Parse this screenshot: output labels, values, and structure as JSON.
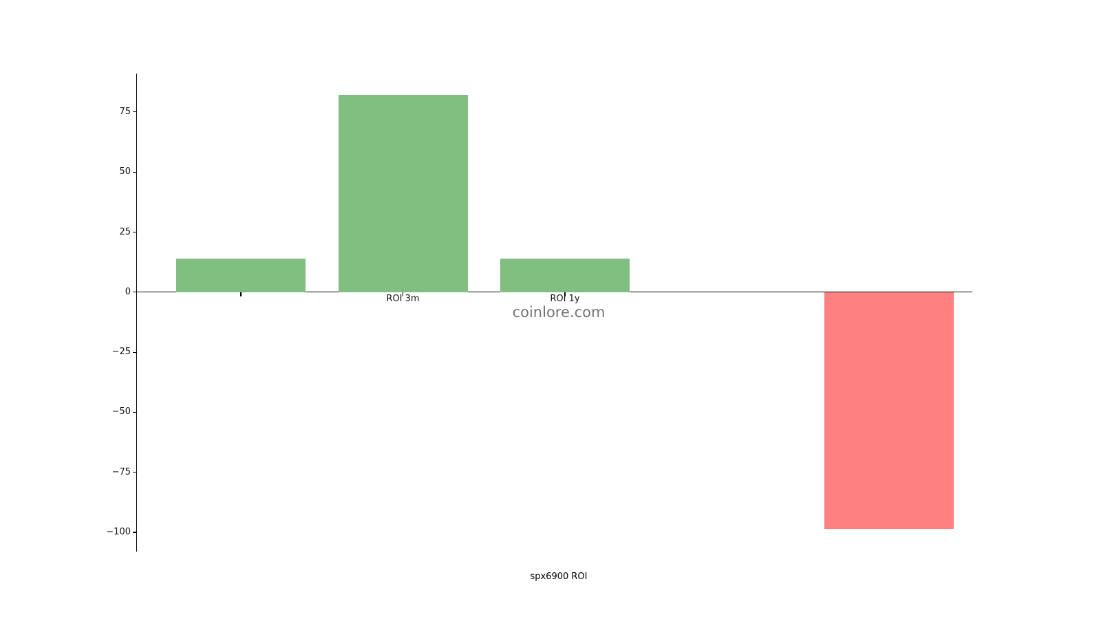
{
  "chart_data": {
    "type": "bar",
    "title": "spx6900 ROI",
    "title_position": "bottom",
    "xlabel": "spx6900 ROI",
    "ylabel": "",
    "watermark": "coinlore.com",
    "categories": [
      "",
      "ROI 3m",
      "ROI 1y",
      "",
      ""
    ],
    "values": [
      14,
      82,
      14,
      0,
      -98.5
    ],
    "bar_colors": [
      "#80BF80",
      "#80BF80",
      "#80BF80",
      null,
      "#FF8080"
    ],
    "positive_color": "#80BF80",
    "negative_color": "#FF8080",
    "yticks": [
      75,
      50,
      25,
      0,
      -25,
      -50,
      -75,
      -100
    ],
    "ylim": [
      -108,
      91
    ],
    "xticks_shown": [
      true,
      true,
      true,
      false,
      false
    ],
    "grid": false,
    "legend": false,
    "axis_color": "#000000",
    "watermark_color": "#757575"
  }
}
